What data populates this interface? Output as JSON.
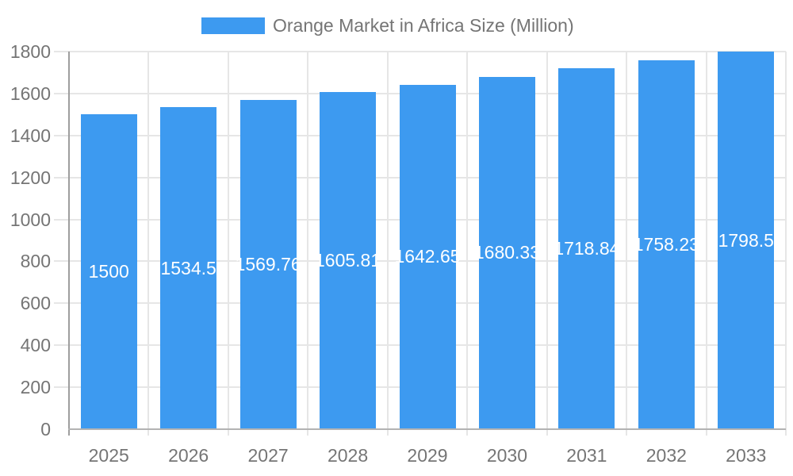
{
  "legend": {
    "swatch_color": "#3d9af0",
    "label": "Orange Market in Africa Size (Million)"
  },
  "chart_data": {
    "type": "bar",
    "title": "Orange Market in Africa Size (Million)",
    "categories": [
      "2025",
      "2026",
      "2027",
      "2028",
      "2029",
      "2030",
      "2031",
      "2032",
      "2033"
    ],
    "series": [
      {
        "name": "Orange Market in Africa Size (Million)",
        "values": [
          1500,
          1534.5,
          1569.76,
          1605.81,
          1642.65,
          1680.33,
          1718.84,
          1758.23,
          1798.5
        ],
        "labels": [
          "1500",
          "1534.5",
          "1569.76",
          "1605.81",
          "1642.65",
          "1680.33",
          "1718.84",
          "1758.23",
          "1798.5"
        ],
        "color": "#3d9af0"
      }
    ],
    "xlabel": "",
    "ylabel": "",
    "ylim": [
      0,
      1800
    ],
    "yticks": [
      0,
      200,
      400,
      600,
      800,
      1000,
      1200,
      1400,
      1600,
      1800
    ],
    "grid": true,
    "legend_position": "top",
    "bar_label_color": "#ffffff"
  },
  "colors": {
    "bar": "#3d9af0",
    "axis_text": "#757575",
    "gridline": "#e6e6e6",
    "y_axis_line": "#9e9e9e",
    "x_axis_line": "#b3b3b3",
    "background": "#ffffff"
  }
}
